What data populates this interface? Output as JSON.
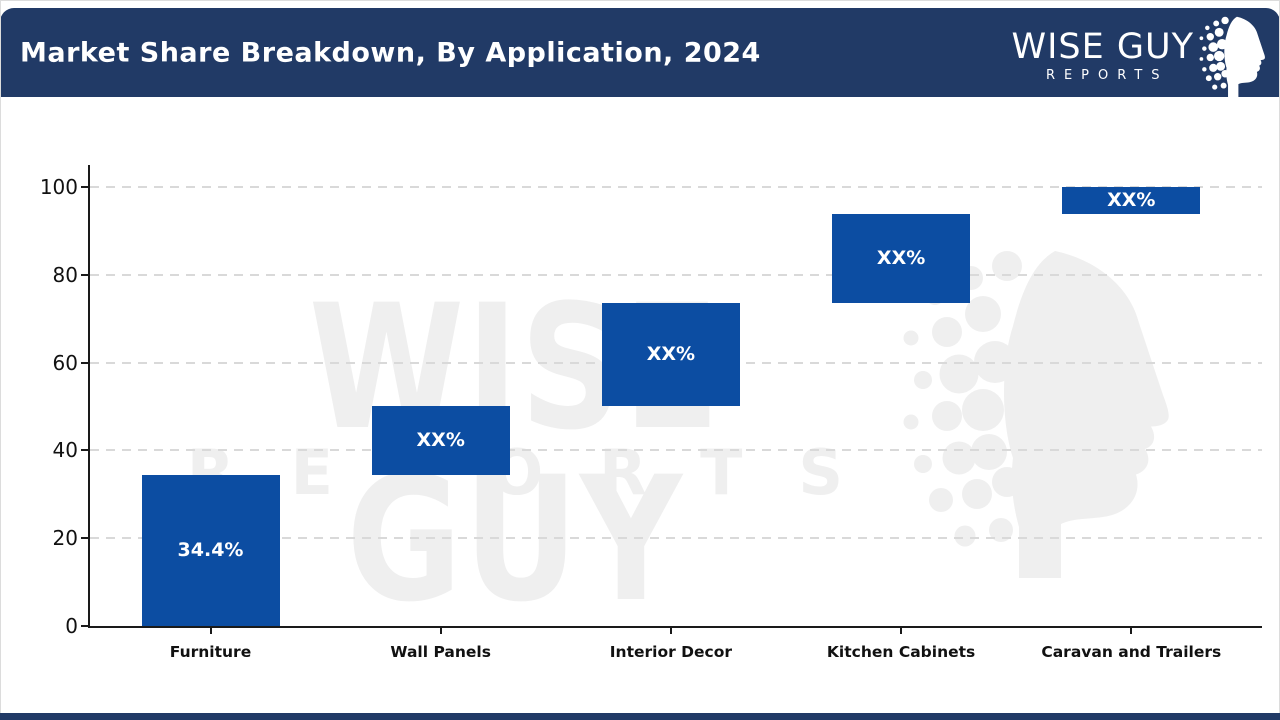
{
  "header": {
    "title": "Market Share Breakdown, By Application, 2024",
    "logo": {
      "line1": "WISE GUY",
      "line2": "REPORTS"
    }
  },
  "watermark": {
    "line1": "WISE GUY",
    "line2": "REPORTS"
  },
  "chart_data": {
    "type": "bar",
    "subtype": "waterfall",
    "title": "Market Share Breakdown, By Application, 2024",
    "categories": [
      "Furniture",
      "Wall Panels",
      "Interior Decor",
      "Kitchen Cabinets",
      "Caravan and Trailers"
    ],
    "segments": [
      {
        "category": "Furniture",
        "start": 0,
        "end": 34.4,
        "label": "34.4%"
      },
      {
        "category": "Wall Panels",
        "start": 34.4,
        "end": 50.1,
        "label": "XX%"
      },
      {
        "category": "Interior Decor",
        "start": 50.1,
        "end": 73.6,
        "label": "XX%"
      },
      {
        "category": "Kitchen Cabinets",
        "start": 73.6,
        "end": 93.8,
        "label": "XX%"
      },
      {
        "category": "Caravan and Trailers",
        "start": 93.8,
        "end": 100,
        "label": "XX%"
      }
    ],
    "y_ticks": [
      0,
      20,
      40,
      60,
      80,
      100
    ],
    "ylim": [
      0,
      105
    ],
    "xlabel": "",
    "ylabel": "",
    "legend": "none",
    "grid": "horizontal-dashed",
    "bar_color": "#0c4da2",
    "grid_color": "#d9d9d9",
    "header_color": "#213a66",
    "watermark_color": "#efefef"
  }
}
